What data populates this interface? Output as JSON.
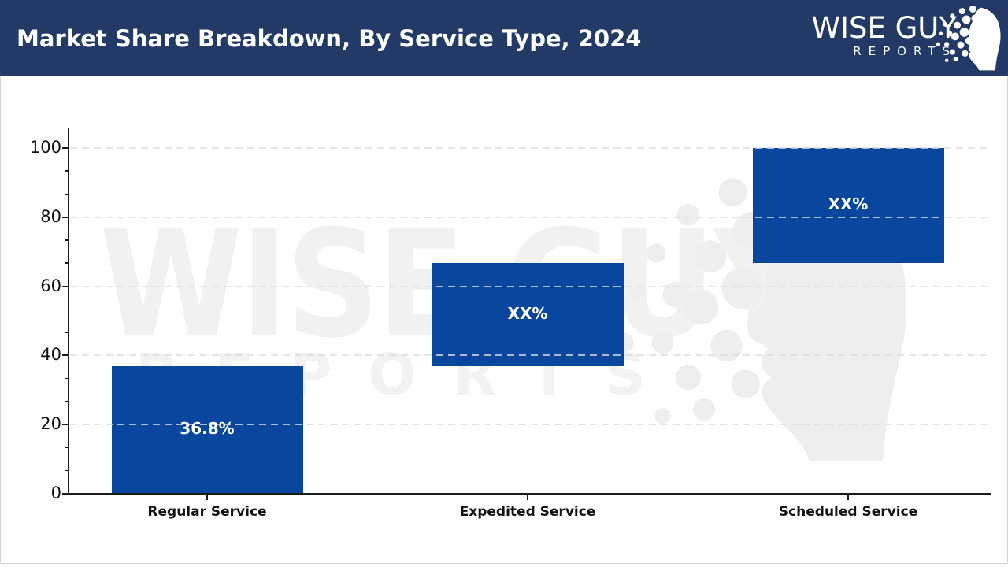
{
  "header": {
    "title": "Market Share Breakdown, By Service Type, 2024",
    "bg_color": "#233a66",
    "logo": {
      "line1": "WISE GUY",
      "line2": "REPORTS"
    }
  },
  "watermark": {
    "line1": "WISE GUY",
    "line2": "REPORTS"
  },
  "chart_data": {
    "type": "bar",
    "subtype": "floating-waterfall",
    "title": "Market Share Breakdown, By Service Type, 2024",
    "categories": [
      "Regular Service",
      "Expedited Service",
      "Scheduled Service"
    ],
    "segments": [
      {
        "category": "Regular Service",
        "start": 0,
        "end": 36.8,
        "label": "36.8%"
      },
      {
        "category": "Expedited Service",
        "start": 36.8,
        "end": 66.8,
        "label": "XX%"
      },
      {
        "category": "Scheduled Service",
        "start": 66.8,
        "end": 100,
        "label": "XX%"
      }
    ],
    "xlabel": "",
    "ylabel": "",
    "ylim": [
      0,
      100
    ],
    "yticks": [
      0,
      20,
      40,
      60,
      80,
      100
    ],
    "grid": "dashed-horizontal",
    "legend": "none",
    "bar_color": "#09479f",
    "bar_label_color": "#ffffff",
    "gridline_color": "#dcdcdc",
    "axis_color": "#1a1a1a"
  }
}
